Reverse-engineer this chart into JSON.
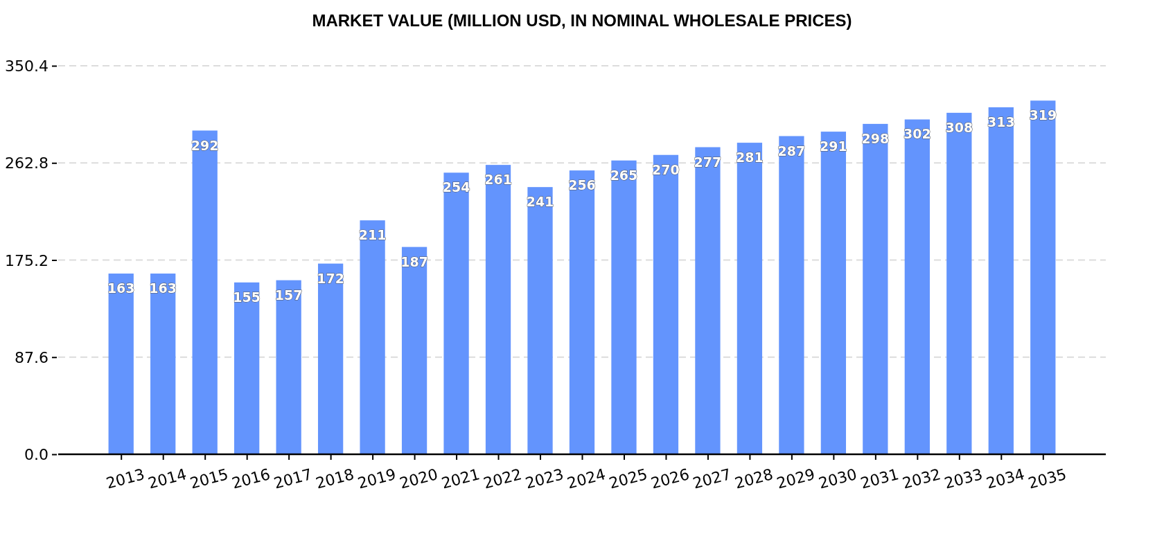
{
  "chart_data": {
    "type": "bar",
    "title": "MARKET VALUE (MILLION USD, IN NOMINAL WHOLESALE PRICES)",
    "categories": [
      "2013",
      "2014",
      "2015",
      "2016",
      "2017",
      "2018",
      "2019",
      "2020",
      "2021",
      "2022",
      "2023",
      "2024",
      "2025",
      "2026",
      "2027",
      "2028",
      "2029",
      "2030",
      "2031",
      "2032",
      "2033",
      "2034",
      "2035"
    ],
    "values": [
      163,
      163,
      292,
      155,
      157,
      172,
      211,
      187,
      254,
      261,
      241,
      256,
      265,
      270,
      277,
      281,
      287,
      291,
      298,
      302,
      308,
      313,
      319
    ],
    "color": "#6394fd",
    "ylim": [
      0,
      350.4
    ],
    "yticks": [
      {
        "value": 0,
        "label": "0.0"
      },
      87.6,
      175.2,
      262.8,
      350.4
    ],
    "grid": "y",
    "data_labels": true
  }
}
